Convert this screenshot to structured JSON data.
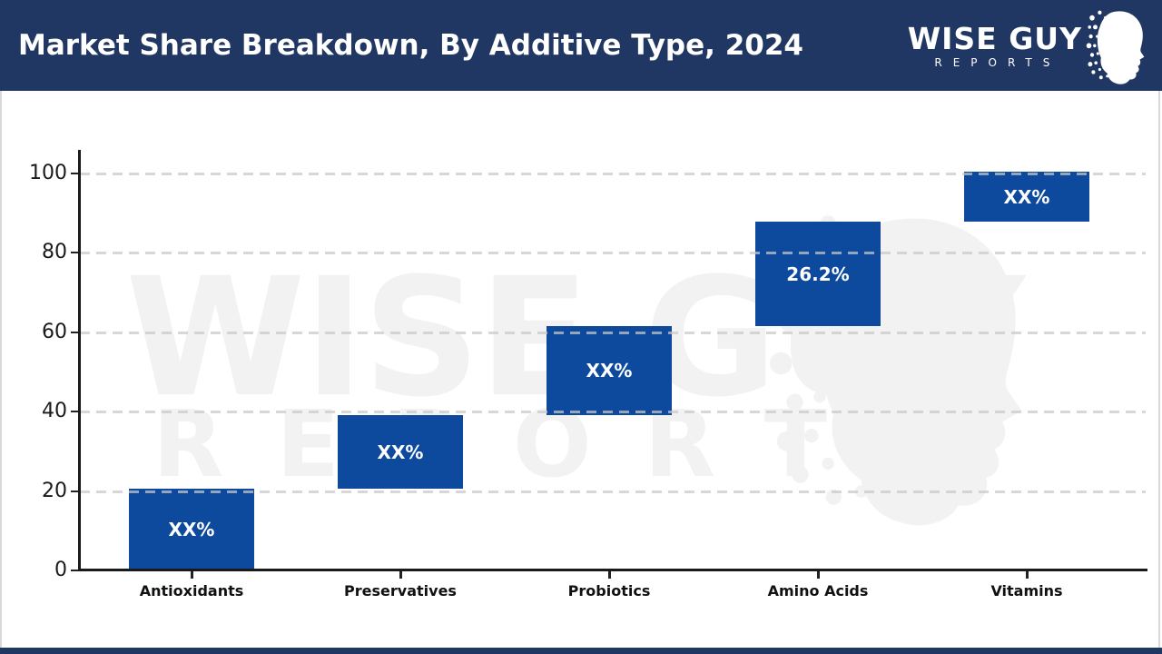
{
  "header": {
    "title": "Market Share Breakdown, By Additive Type, 2024",
    "logo": {
      "line1": "WISE GUY",
      "line2": "REPORTS"
    }
  },
  "watermark": {
    "line1": "WISE GUY",
    "line2": "REPORTS"
  },
  "footer": {},
  "chart_data": {
    "type": "bar",
    "subtype": "waterfall",
    "title": "Market Share Breakdown, By Additive Type, 2024",
    "categories": [
      "Antioxidants",
      "Preservatives",
      "Probiotics",
      "Amino Acids",
      "Vitamins"
    ],
    "segments": [
      {
        "category": "Antioxidants",
        "start": 0,
        "end": 20.5,
        "value_label": "XX%"
      },
      {
        "category": "Preservatives",
        "start": 20.5,
        "end": 39,
        "value_label": "XX%"
      },
      {
        "category": "Probiotics",
        "start": 39,
        "end": 61.5,
        "value_label": "XX%"
      },
      {
        "category": "Amino Acids",
        "start": 61.5,
        "end": 87.7,
        "value_label": "26.2%"
      },
      {
        "category": "Vitamins",
        "start": 87.7,
        "end": 100.3,
        "value_label": "XX%"
      }
    ],
    "y_ticks": [
      0,
      20,
      40,
      60,
      80,
      100
    ],
    "ylim": [
      0,
      105
    ],
    "xlabel": "",
    "ylabel": "",
    "grid": "horizontal dashed, drawn over bars",
    "legend": "none",
    "bar_color": "#0d4a9e",
    "colors": {
      "header_navy": "#213763",
      "bar_blue": "#0d4a9e",
      "gridline_gray": "#d8d8d8",
      "axis_black": "#1a1a1a",
      "watermark_gray": "#f2f2f2"
    }
  }
}
